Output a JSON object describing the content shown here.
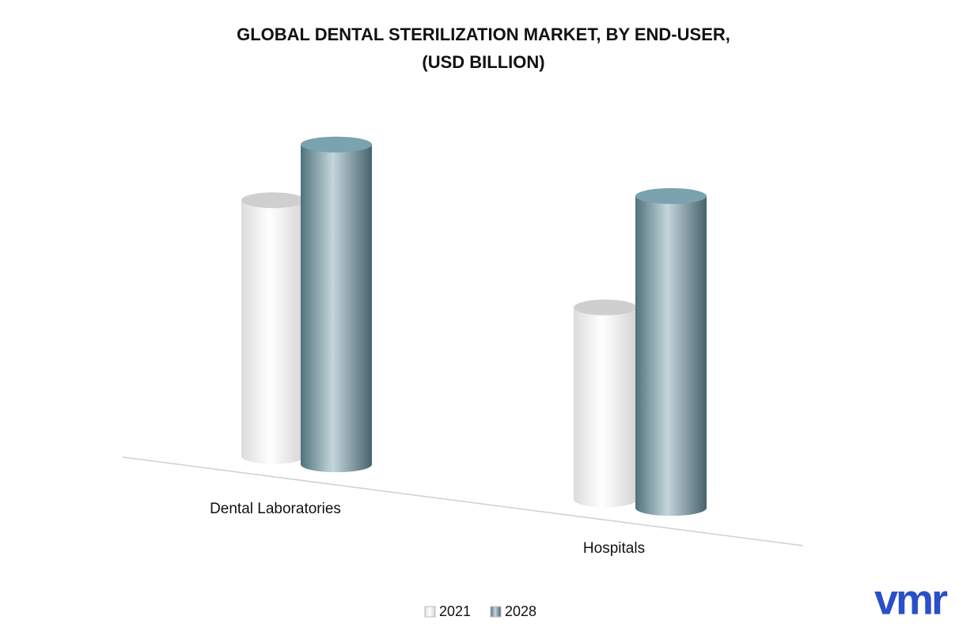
{
  "chart_data": {
    "type": "cylinder",
    "title": [
      "GLOBAL DENTAL STERILIZATION MARKET, BY END-USER,",
      "(USD BILLION)"
    ],
    "categories": [
      "Dental Laboratories",
      "Hospitals"
    ],
    "series": [
      {
        "name": "2021",
        "color": "#ffffff",
        "values": [
          3.2,
          2.4
        ]
      },
      {
        "name": "2028",
        "color": "#6b98a6",
        "values": [
          4.0,
          3.9
        ]
      }
    ],
    "ylim": [
      0,
      4.5
    ],
    "logo": "vmr"
  }
}
